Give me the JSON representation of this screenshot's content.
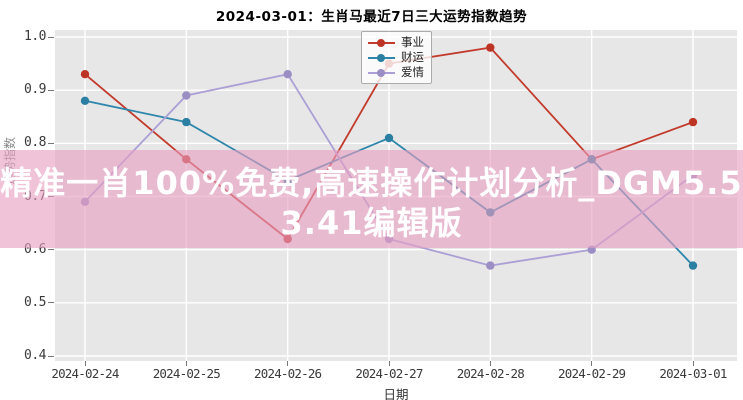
{
  "watermark": {
    "line1": "精准一肖100%免费,高速操作计划分析_DGM5.5",
    "line2": "3.41编辑版",
    "band_color": "rgba(232,158,194,0.62)",
    "text_color": "#ffffff"
  },
  "colors": {
    "plot_background": "#e7e7e7",
    "gridline": "#ffffff",
    "tick_text": "#3a3a3a",
    "axis_label_text": "#8a8a8a",
    "title_text": "#000000"
  },
  "chart_data": {
    "type": "line",
    "title": "2024-03-01：生肖马最近7日三大运势指数趋势",
    "xlabel": "日期",
    "ylabel": "运势指数",
    "categories": [
      "2024-02-24",
      "2024-02-25",
      "2024-02-26",
      "2024-02-27",
      "2024-02-28",
      "2024-02-29",
      "2024-03-01"
    ],
    "series": [
      {
        "name": "事业",
        "color": "#c23b2c",
        "marker_color": "#bd3425",
        "values": [
          0.93,
          0.77,
          0.62,
          0.95,
          0.98,
          0.77,
          0.84
        ]
      },
      {
        "name": "财运",
        "color": "#2e86ab",
        "marker_color": "#2b7fa3",
        "values": [
          0.88,
          0.84,
          0.73,
          0.81,
          0.67,
          0.77,
          0.57
        ]
      },
      {
        "name": "爱情",
        "color": "#ab9fd6",
        "marker_color": "#9b8ec4",
        "values": [
          0.69,
          0.89,
          0.93,
          0.62,
          0.57,
          0.6,
          0.74
        ]
      }
    ],
    "ylim": [
      0.4,
      1.0
    ],
    "y_tick_labels": [
      "1.0",
      "0.9",
      "0.8",
      "0.7",
      "0.6",
      "0.5",
      "0.4"
    ],
    "grid": true,
    "legend_position": "top-center",
    "line_width": 1.8,
    "marker_radius": 4.2
  }
}
